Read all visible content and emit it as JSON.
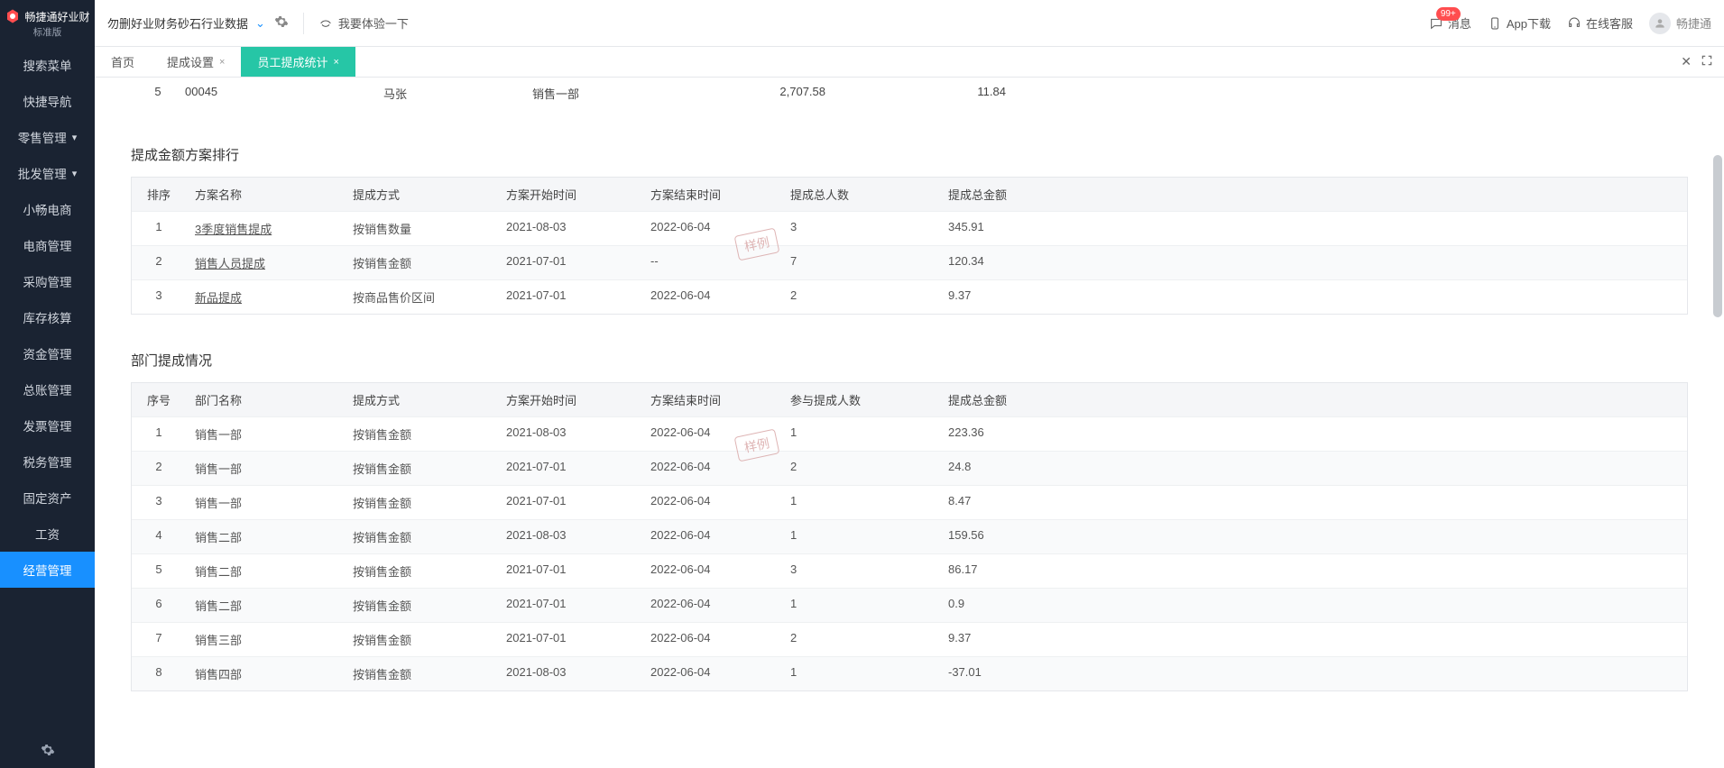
{
  "brand": {
    "name": "畅捷通好业财",
    "edition": "标准版"
  },
  "topbar": {
    "org_name": "勿删好业财务砂石行业数据",
    "experience_label": "我要体验一下",
    "message_label": "消息",
    "message_badge": "99+",
    "download_label": "App下载",
    "service_label": "在线客服",
    "user_name": "畅捷通"
  },
  "sidebar": {
    "items": [
      {
        "label": "搜索菜单",
        "expandable": false
      },
      {
        "label": "快捷导航",
        "expandable": false
      },
      {
        "label": "零售管理",
        "expandable": true
      },
      {
        "label": "批发管理",
        "expandable": true
      },
      {
        "label": "小畅电商",
        "expandable": false
      },
      {
        "label": "电商管理",
        "expandable": false
      },
      {
        "label": "采购管理",
        "expandable": false
      },
      {
        "label": "库存核算",
        "expandable": false
      },
      {
        "label": "资金管理",
        "expandable": false
      },
      {
        "label": "总账管理",
        "expandable": false
      },
      {
        "label": "发票管理",
        "expandable": false
      },
      {
        "label": "税务管理",
        "expandable": false
      },
      {
        "label": "固定资产",
        "expandable": false
      },
      {
        "label": "工资",
        "expandable": false
      },
      {
        "label": "经营管理",
        "expandable": false,
        "active": true
      }
    ]
  },
  "tabs": [
    {
      "label": "首页",
      "closable": false,
      "active": false
    },
    {
      "label": "提成设置",
      "closable": true,
      "active": false
    },
    {
      "label": "员工提成统计",
      "closable": true,
      "active": true
    }
  ],
  "partial_row": {
    "seq": "5",
    "code": "00045",
    "name": "马张",
    "dept": "销售一部",
    "amount": "2,707.58",
    "commission": "11.84"
  },
  "watermark_text": "样例",
  "section1": {
    "title": "提成金额方案排行",
    "columns": [
      "排序",
      "方案名称",
      "提成方式",
      "方案开始时间",
      "方案结束时间",
      "提成总人数",
      "提成总金额"
    ],
    "rows": [
      {
        "seq": "1",
        "plan": "3季度销售提成",
        "method": "按销售数量",
        "start": "2021-08-03",
        "end": "2022-06-04",
        "people": "3",
        "total": "345.91"
      },
      {
        "seq": "2",
        "plan": "销售人员提成",
        "method": "按销售金额",
        "start": "2021-07-01",
        "end": "--",
        "people": "7",
        "total": "120.34"
      },
      {
        "seq": "3",
        "plan": "新品提成",
        "method": "按商品售价区间",
        "start": "2021-07-01",
        "end": "2022-06-04",
        "people": "2",
        "total": "9.37"
      }
    ]
  },
  "section2": {
    "title": "部门提成情况",
    "columns": [
      "序号",
      "部门名称",
      "提成方式",
      "方案开始时间",
      "方案结束时间",
      "参与提成人数",
      "提成总金额"
    ],
    "rows": [
      {
        "seq": "1",
        "dept": "销售一部",
        "method": "按销售金额",
        "start": "2021-08-03",
        "end": "2022-06-04",
        "people": "1",
        "total": "223.36"
      },
      {
        "seq": "2",
        "dept": "销售一部",
        "method": "按销售金额",
        "start": "2021-07-01",
        "end": "2022-06-04",
        "people": "2",
        "total": "24.8"
      },
      {
        "seq": "3",
        "dept": "销售一部",
        "method": "按销售金额",
        "start": "2021-07-01",
        "end": "2022-06-04",
        "people": "1",
        "total": "8.47"
      },
      {
        "seq": "4",
        "dept": "销售二部",
        "method": "按销售金额",
        "start": "2021-08-03",
        "end": "2022-06-04",
        "people": "1",
        "total": "159.56"
      },
      {
        "seq": "5",
        "dept": "销售二部",
        "method": "按销售金额",
        "start": "2021-07-01",
        "end": "2022-06-04",
        "people": "3",
        "total": "86.17"
      },
      {
        "seq": "6",
        "dept": "销售二部",
        "method": "按销售金额",
        "start": "2021-07-01",
        "end": "2022-06-04",
        "people": "1",
        "total": "0.9"
      },
      {
        "seq": "7",
        "dept": "销售三部",
        "method": "按销售金额",
        "start": "2021-07-01",
        "end": "2022-06-04",
        "people": "2",
        "total": "9.37"
      },
      {
        "seq": "8",
        "dept": "销售四部",
        "method": "按销售金额",
        "start": "2021-08-03",
        "end": "2022-06-04",
        "people": "1",
        "total": "-37.01"
      }
    ]
  },
  "colors": {
    "sidebar_bg": "#1a2332",
    "active_menu": "#1890ff",
    "active_tab": "#26c6a6",
    "badge": "#ff4d4f",
    "border": "#e5e7eb",
    "header_bg": "#f5f6f8",
    "watermark": "#d9a8a8"
  }
}
